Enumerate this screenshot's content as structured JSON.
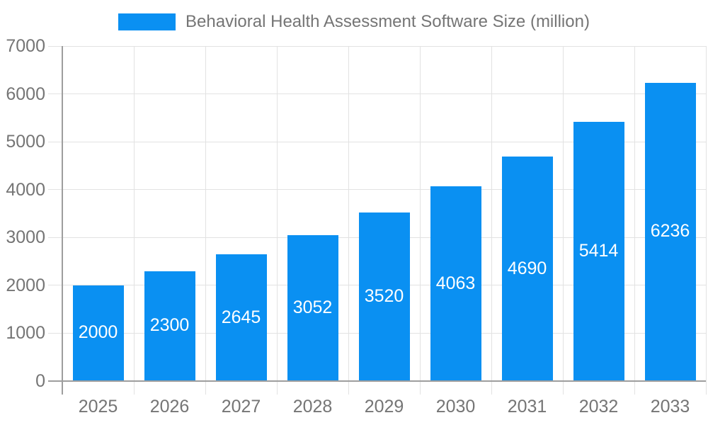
{
  "chart_data": {
    "type": "bar",
    "title": "Behavioral Health Assessment Software Size (million)",
    "legend": {
      "label": "Behavioral Health Assessment Software Size (million)",
      "position": "top-center"
    },
    "categories": [
      "2025",
      "2026",
      "2027",
      "2028",
      "2029",
      "2030",
      "2031",
      "2032",
      "2033"
    ],
    "series": [
      {
        "name": "Behavioral Health Assessment Software Size (million)",
        "values": [
          2000,
          2300,
          2645,
          3052,
          3520,
          4063,
          4690,
          5414,
          6236
        ]
      }
    ],
    "value_labels_visible": true,
    "xlabel": "",
    "ylabel": "",
    "ylim": [
      0,
      7000
    ],
    "yticks": [
      0,
      1000,
      2000,
      3000,
      4000,
      5000,
      6000,
      7000
    ],
    "grid": true,
    "colors": {
      "bar": "#0a90f2",
      "grid": "#e2e2e2",
      "axis": "#9e9e9e",
      "tick_text": "#757575",
      "legend_text": "#757575",
      "value_label_text": "#ffffff",
      "background": "#ffffff"
    }
  }
}
